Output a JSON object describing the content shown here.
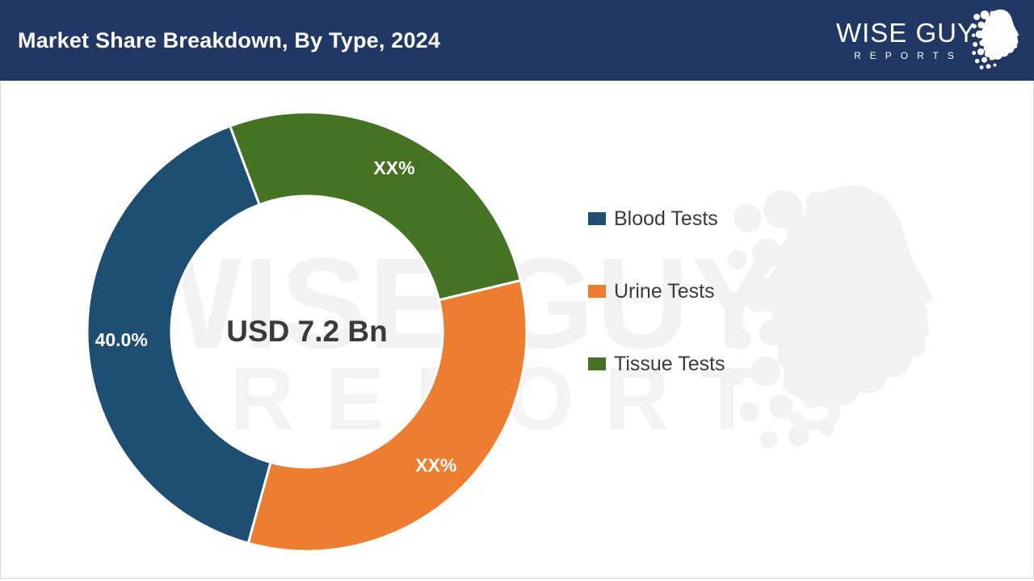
{
  "header": {
    "title": "Market Share Breakdown, By Type, 2024",
    "logo": {
      "line1": "WISE GUY",
      "line2": "REPORTS"
    }
  },
  "watermark": {
    "line1": "WISE GUY",
    "line2": "REPORTS"
  },
  "chart_data": {
    "type": "donut",
    "title": "Market Share Breakdown, By Type, 2024",
    "center_label": "USD 7.2 Bn",
    "legend_position": "right",
    "segments": [
      {
        "name": "Blood Tests",
        "label": "40.0%",
        "value_pct": 40.0,
        "color": "#1F4E73",
        "start_angle_deg": 195.5,
        "end_angle_deg": 339.5
      },
      {
        "name": "Tissue Tests",
        "label": "XX%",
        "value_pct": null,
        "color": "#457323",
        "start_angle_deg": 339.5,
        "end_angle_deg": 436.5
      },
      {
        "name": "Urine Tests",
        "label": "XX%",
        "value_pct": null,
        "color": "#ED7D31",
        "start_angle_deg": 76.5,
        "end_angle_deg": 195.5
      }
    ],
    "colors": {
      "segment_label_text": "#FFFFFF",
      "center_text": "#3A3A3A"
    }
  },
  "legend": {
    "items": [
      {
        "label": "Blood Tests",
        "color": "#1F4E73"
      },
      {
        "label": "Urine Tests",
        "color": "#ED7D31"
      },
      {
        "label": "Tissue Tests",
        "color": "#457323"
      }
    ]
  },
  "theme": {
    "header_bg": "#203863",
    "content_border": "#D9D9D9",
    "watermark_color": "#F2F2F2"
  }
}
